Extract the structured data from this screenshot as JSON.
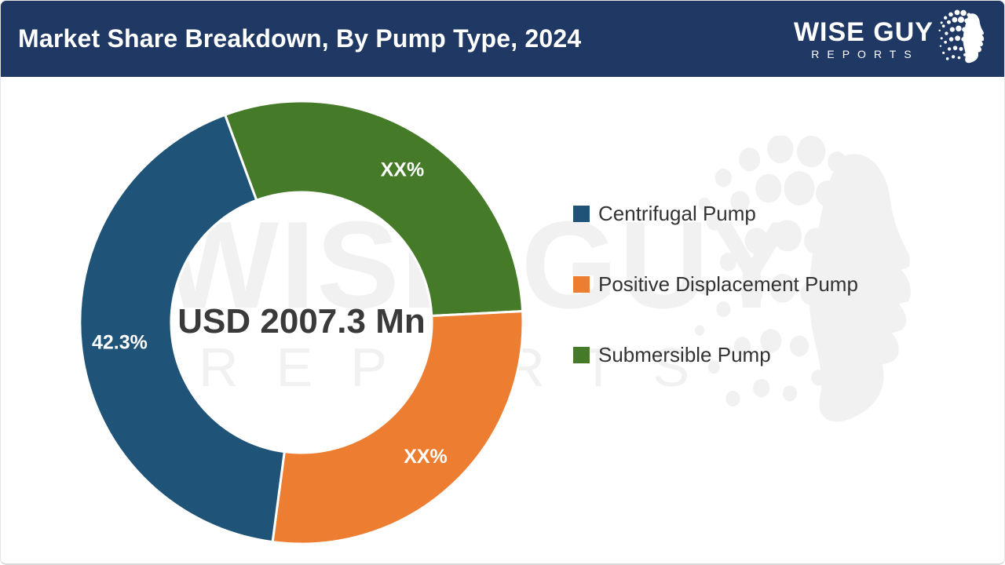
{
  "header": {
    "title": "Market Share Breakdown, By Pump Type, 2024",
    "logo": {
      "main": "WISE GUY",
      "sub": "REPORTS"
    }
  },
  "watermark": {
    "main": "WISE GUY",
    "sub": "REPORTS"
  },
  "colors": {
    "header_bg": "#1F3864",
    "center_text": "#3A3A3A",
    "watermark": "#F1F1F1",
    "slice_label_text": "#FFFFFF"
  },
  "chart_data": {
    "type": "pie",
    "subtype": "donut",
    "title": "Market Share Breakdown, By Pump Type, 2024",
    "center_label": "USD 2007.3 Mn",
    "rotation_deg": -20.2,
    "inner_radius_ratio": 0.59,
    "legend_position": "right",
    "slices": [
      {
        "name": "Submersible Pump",
        "pct": 29.8,
        "pct_label": "XX%",
        "color": "#457A28"
      },
      {
        "name": "Positive Displacement Pump",
        "pct": 27.9,
        "pct_label": "XX%",
        "color": "#ED7D31"
      },
      {
        "name": "Centrifugal Pump",
        "pct": 42.3,
        "pct_label": "42.3%",
        "color": "#1F5377"
      }
    ],
    "legend": [
      {
        "label": "Centrifugal Pump",
        "color": "#1F5377"
      },
      {
        "label": "Positive Displacement Pump",
        "color": "#ED7D31"
      },
      {
        "label": "Submersible Pump",
        "color": "#457A28"
      }
    ]
  }
}
